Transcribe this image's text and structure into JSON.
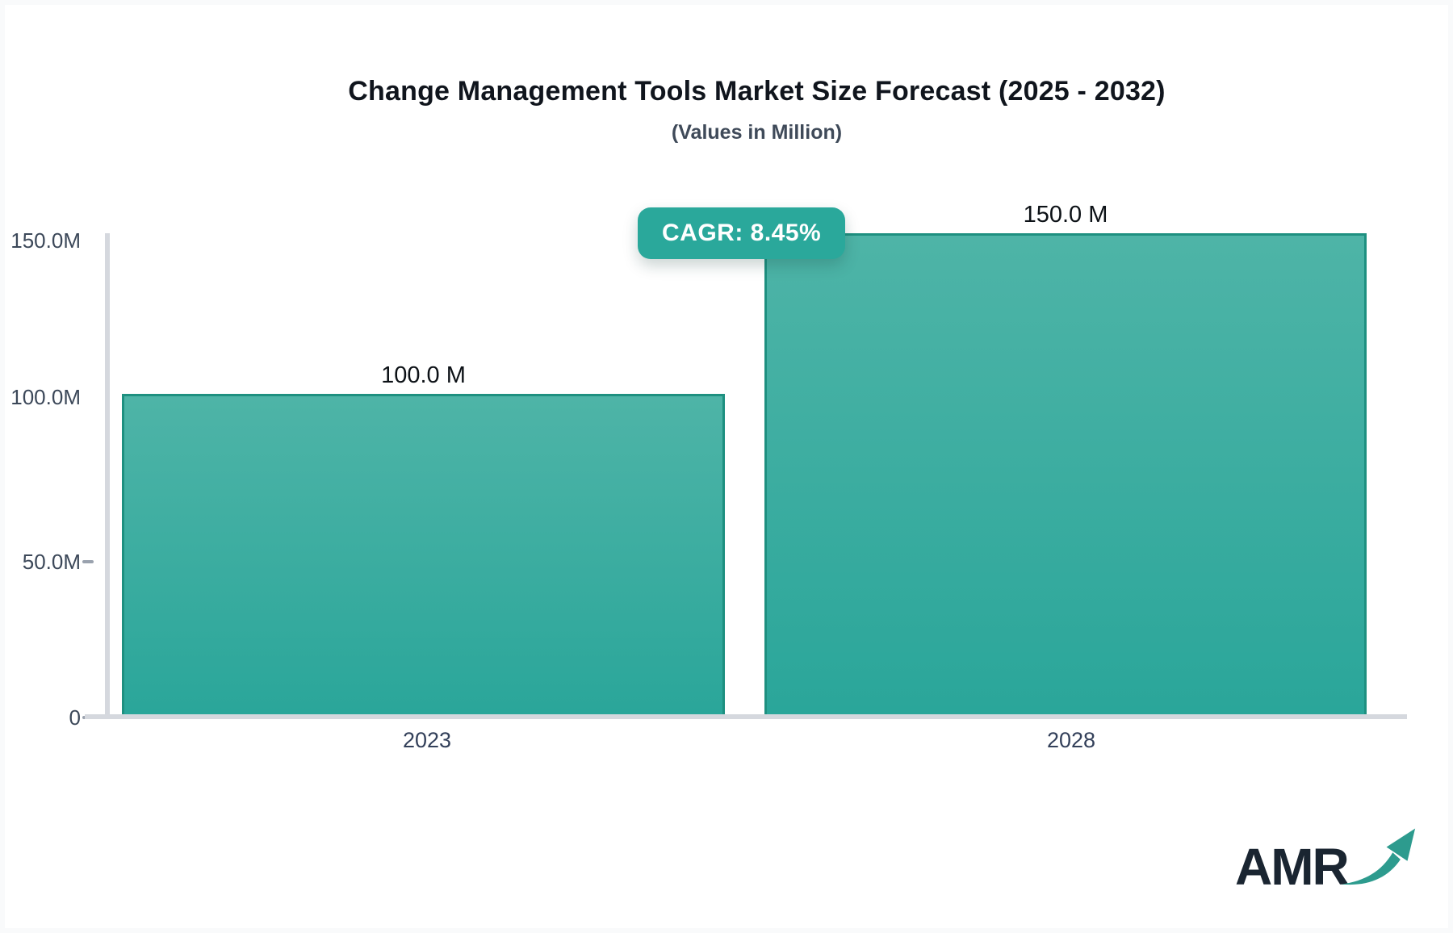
{
  "header": {
    "title": "Change Management Tools Market Size Forecast (2025 - 2032)",
    "subtitle": "(Values in Million)"
  },
  "badge": {
    "label": "CAGR: 8.45%"
  },
  "chart_data": {
    "type": "bar",
    "categories": [
      "2023",
      "2028"
    ],
    "values": [
      100.0,
      150.0
    ],
    "value_labels": [
      "100.0 M",
      "150.0 M"
    ],
    "unit": "M",
    "title": "Change Management Tools Market Size Forecast (2025 - 2032)",
    "subtitle": "(Values in Million)",
    "xlabel": "",
    "ylabel": "",
    "ylim": [
      0,
      150
    ],
    "yticks": [
      0,
      50,
      100,
      150
    ],
    "ytick_labels_top_to_bottom": [
      "150.0M",
      "100.0M",
      "50.0M",
      "0"
    ],
    "grid": "off",
    "legend": "none",
    "cagr_percent": 8.45
  },
  "colors": {
    "bar_top": "#4eb4a7",
    "bar_bottom": "#2aa69a",
    "bar_stroke": "#1e9080",
    "badge_bg": "#2aa89b",
    "axis_line": "#d5d8de",
    "tick": "#9aa2ae",
    "title_text": "#10151d",
    "axis_label_text": "#3c4859",
    "logo_text": "#1a2531",
    "logo_arrow": "#2d9b8e"
  },
  "logo": {
    "text": "AMR"
  }
}
